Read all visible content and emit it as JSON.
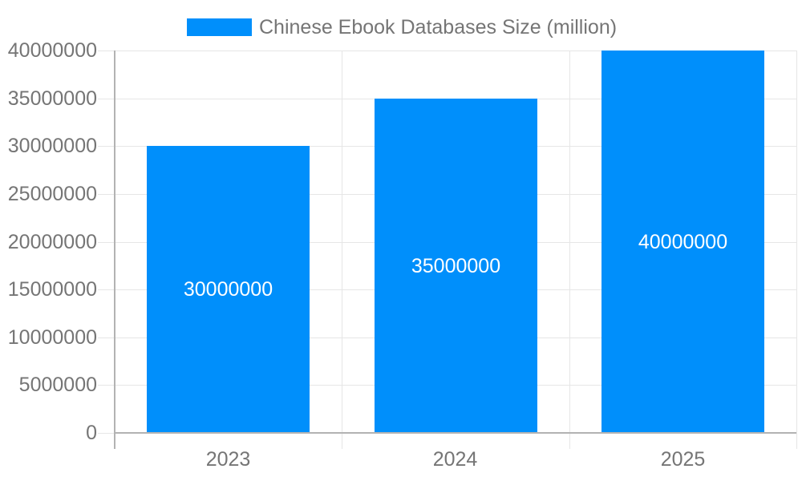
{
  "legend": {
    "label": "Chinese Ebook Databases Size (million)"
  },
  "chart_data": {
    "type": "bar",
    "title": "Chinese Ebook Databases Size (million)",
    "categories": [
      "2023",
      "2024",
      "2025"
    ],
    "values": [
      30000000,
      35000000,
      40000000
    ],
    "bar_labels": [
      "30000000",
      "35000000",
      "40000000"
    ],
    "xlabel": "",
    "ylabel": "",
    "ylim": [
      0,
      40000000
    ],
    "ytick_step": 5000000,
    "ytick_labels": [
      "0",
      "5000000",
      "10000000",
      "15000000",
      "20000000",
      "25000000",
      "30000000",
      "35000000",
      "40000000"
    ],
    "grid": true,
    "legend_position": "top-center",
    "bar_color": "#008FFB",
    "label_color": "#ffffff",
    "axis_text_color": "#757575",
    "gridline_color": "#e6e6e6",
    "axis_line_color": "#b3b3b3"
  }
}
